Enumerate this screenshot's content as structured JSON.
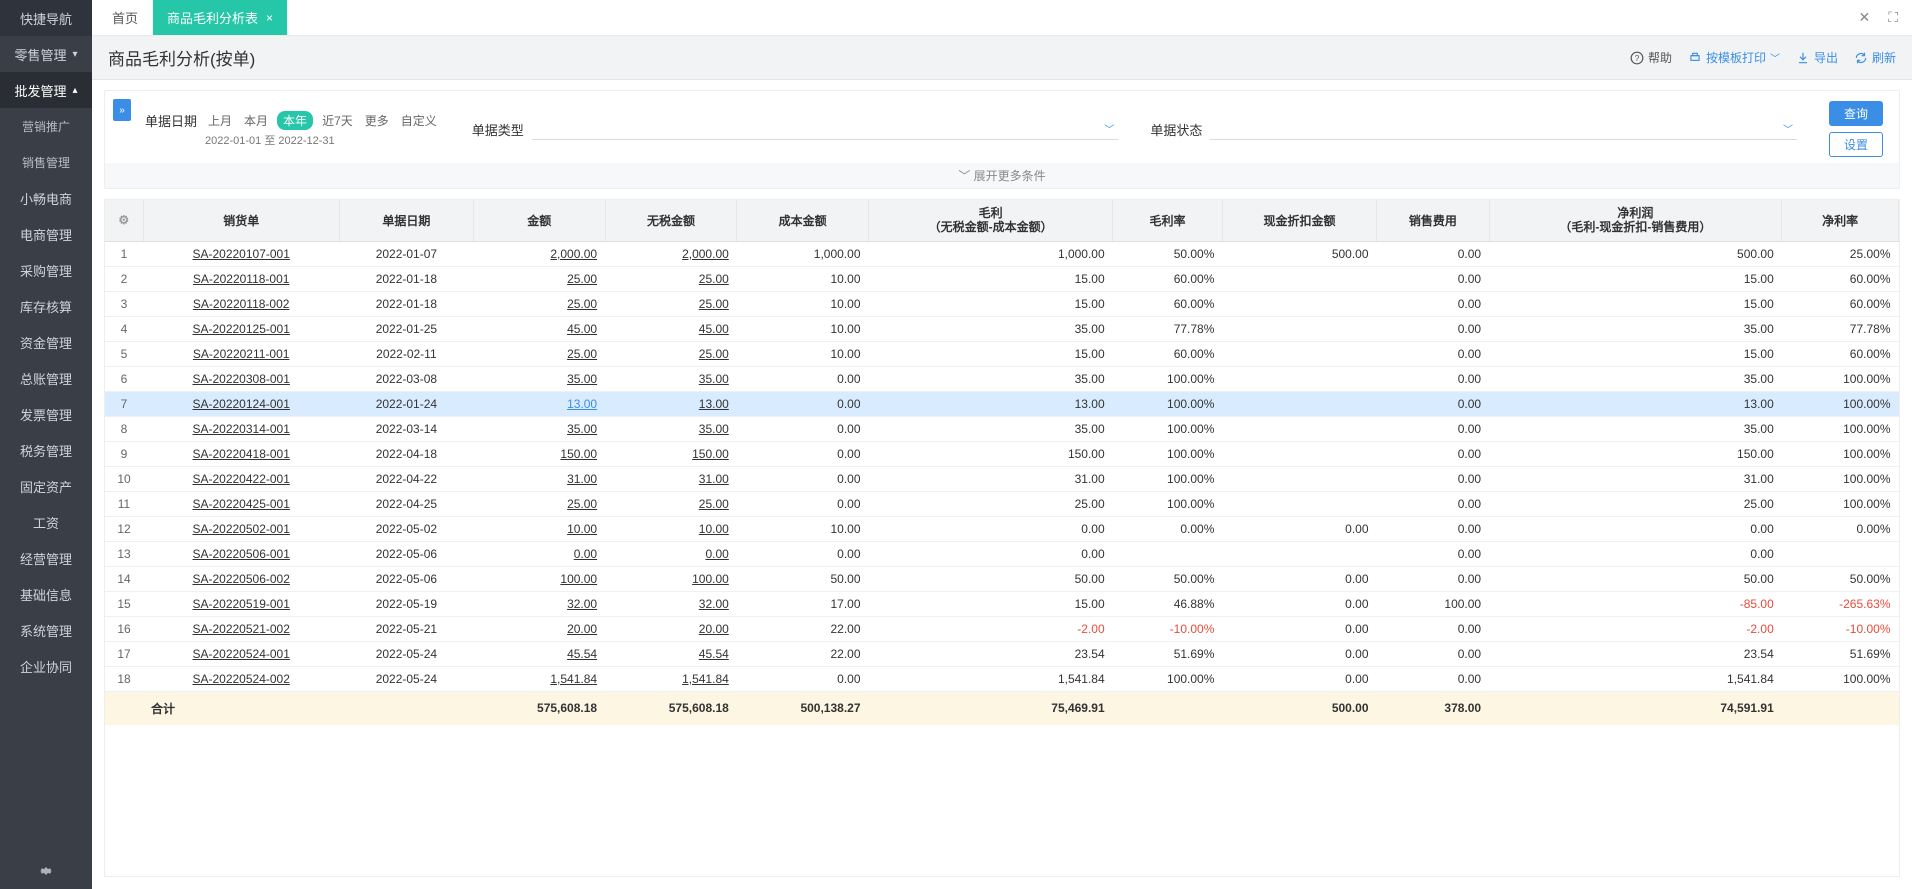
{
  "sidebar": {
    "items": [
      {
        "label": "快捷导航",
        "caret": false
      },
      {
        "label": "零售管理",
        "caret": true,
        "caret_dir": "down"
      },
      {
        "label": "批发管理",
        "caret": true,
        "caret_dir": "up",
        "active": true
      },
      {
        "label": "营销推广",
        "sub": true
      },
      {
        "label": "销售管理",
        "sub": true
      },
      {
        "label": "小畅电商"
      },
      {
        "label": "电商管理"
      },
      {
        "label": "采购管理"
      },
      {
        "label": "库存核算"
      },
      {
        "label": "资金管理"
      },
      {
        "label": "总账管理"
      },
      {
        "label": "发票管理"
      },
      {
        "label": "税务管理"
      },
      {
        "label": "固定资产"
      },
      {
        "label": "工资"
      },
      {
        "label": "经营管理"
      },
      {
        "label": "基础信息"
      },
      {
        "label": "系统管理"
      },
      {
        "label": "企业协同"
      }
    ]
  },
  "tabs": {
    "items": [
      {
        "label": "首页",
        "closable": false
      },
      {
        "label": "商品毛利分析表",
        "closable": true,
        "active": true
      }
    ]
  },
  "page": {
    "title": "商品毛利分析(按单)",
    "toolbar": {
      "help": "帮助",
      "print": "按模板打印",
      "export": "导出",
      "refresh": "刷新"
    }
  },
  "filters": {
    "date_label": "单据日期",
    "date_tabs": [
      "上月",
      "本月",
      "本年",
      "近7天",
      "更多",
      "自定义"
    ],
    "date_active": "本年",
    "date_range": "2022-01-01 至 2022-12-31",
    "type_label": "单据类型",
    "status_label": "单据状态",
    "query_btn": "查询",
    "setting_btn": "设置",
    "expand": "展开更多条件"
  },
  "table": {
    "columns": [
      "销货单",
      "单据日期",
      "金额",
      "无税金额",
      "成本金额",
      "毛利\n（无税金额-成本金额）",
      "毛利率",
      "现金折扣金额",
      "销售费用",
      "净利润\n（毛利-现金折扣-销售费用）",
      "净利率"
    ],
    "rows": [
      {
        "idx": 1,
        "order": "SA-20220107-001",
        "date": "2022-01-07",
        "amt": "2,000.00",
        "amt_nt": "2,000.00",
        "cost": "1,000.00",
        "gp": "1,000.00",
        "gpr": "50.00%",
        "disc": "500.00",
        "fee": "0.00",
        "np": "500.00",
        "npr": "25.00%"
      },
      {
        "idx": 2,
        "order": "SA-20220118-001",
        "date": "2022-01-18",
        "amt": "25.00",
        "amt_nt": "25.00",
        "cost": "10.00",
        "gp": "15.00",
        "gpr": "60.00%",
        "disc": "",
        "fee": "0.00",
        "np": "15.00",
        "npr": "60.00%"
      },
      {
        "idx": 3,
        "order": "SA-20220118-002",
        "date": "2022-01-18",
        "amt": "25.00",
        "amt_nt": "25.00",
        "cost": "10.00",
        "gp": "15.00",
        "gpr": "60.00%",
        "disc": "",
        "fee": "0.00",
        "np": "15.00",
        "npr": "60.00%"
      },
      {
        "idx": 4,
        "order": "SA-20220125-001",
        "date": "2022-01-25",
        "amt": "45.00",
        "amt_nt": "45.00",
        "cost": "10.00",
        "gp": "35.00",
        "gpr": "77.78%",
        "disc": "",
        "fee": "0.00",
        "np": "35.00",
        "npr": "77.78%"
      },
      {
        "idx": 5,
        "order": "SA-20220211-001",
        "date": "2022-02-11",
        "amt": "25.00",
        "amt_nt": "25.00",
        "cost": "10.00",
        "gp": "15.00",
        "gpr": "60.00%",
        "disc": "",
        "fee": "0.00",
        "np": "15.00",
        "npr": "60.00%"
      },
      {
        "idx": 6,
        "order": "SA-20220308-001",
        "date": "2022-03-08",
        "amt": "35.00",
        "amt_nt": "35.00",
        "cost": "0.00",
        "gp": "35.00",
        "gpr": "100.00%",
        "disc": "",
        "fee": "0.00",
        "np": "35.00",
        "npr": "100.00%"
      },
      {
        "idx": 7,
        "order": "SA-20220124-001",
        "date": "2022-01-24",
        "amt": "13.00",
        "amt_nt": "13.00",
        "cost": "0.00",
        "gp": "13.00",
        "gpr": "100.00%",
        "disc": "",
        "fee": "0.00",
        "np": "13.00",
        "npr": "100.00%",
        "highlight": true,
        "blue_amt": true
      },
      {
        "idx": 8,
        "order": "SA-20220314-001",
        "date": "2022-03-14",
        "amt": "35.00",
        "amt_nt": "35.00",
        "cost": "0.00",
        "gp": "35.00",
        "gpr": "100.00%",
        "disc": "",
        "fee": "0.00",
        "np": "35.00",
        "npr": "100.00%"
      },
      {
        "idx": 9,
        "order": "SA-20220418-001",
        "date": "2022-04-18",
        "amt": "150.00",
        "amt_nt": "150.00",
        "cost": "0.00",
        "gp": "150.00",
        "gpr": "100.00%",
        "disc": "",
        "fee": "0.00",
        "np": "150.00",
        "npr": "100.00%"
      },
      {
        "idx": 10,
        "order": "SA-20220422-001",
        "date": "2022-04-22",
        "amt": "31.00",
        "amt_nt": "31.00",
        "cost": "0.00",
        "gp": "31.00",
        "gpr": "100.00%",
        "disc": "",
        "fee": "0.00",
        "np": "31.00",
        "npr": "100.00%"
      },
      {
        "idx": 11,
        "order": "SA-20220425-001",
        "date": "2022-04-25",
        "amt": "25.00",
        "amt_nt": "25.00",
        "cost": "0.00",
        "gp": "25.00",
        "gpr": "100.00%",
        "disc": "",
        "fee": "0.00",
        "np": "25.00",
        "npr": "100.00%"
      },
      {
        "idx": 12,
        "order": "SA-20220502-001",
        "date": "2022-05-02",
        "amt": "10.00",
        "amt_nt": "10.00",
        "cost": "10.00",
        "gp": "0.00",
        "gpr": "0.00%",
        "disc": "0.00",
        "fee": "0.00",
        "np": "0.00",
        "npr": "0.00%"
      },
      {
        "idx": 13,
        "order": "SA-20220506-001",
        "date": "2022-05-06",
        "amt": "0.00",
        "amt_nt": "0.00",
        "cost": "0.00",
        "gp": "0.00",
        "gpr": "",
        "disc": "",
        "fee": "0.00",
        "np": "0.00",
        "npr": ""
      },
      {
        "idx": 14,
        "order": "SA-20220506-002",
        "date": "2022-05-06",
        "amt": "100.00",
        "amt_nt": "100.00",
        "cost": "50.00",
        "gp": "50.00",
        "gpr": "50.00%",
        "disc": "0.00",
        "fee": "0.00",
        "np": "50.00",
        "npr": "50.00%"
      },
      {
        "idx": 15,
        "order": "SA-20220519-001",
        "date": "2022-05-19",
        "amt": "32.00",
        "amt_nt": "32.00",
        "cost": "17.00",
        "gp": "15.00",
        "gpr": "46.88%",
        "disc": "0.00",
        "fee": "100.00",
        "np": "-85.00",
        "npr": "-265.63%",
        "np_neg": true,
        "npr_neg": true
      },
      {
        "idx": 16,
        "order": "SA-20220521-002",
        "date": "2022-05-21",
        "amt": "20.00",
        "amt_nt": "20.00",
        "cost": "22.00",
        "gp": "-2.00",
        "gpr": "-10.00%",
        "disc": "0.00",
        "fee": "0.00",
        "np": "-2.00",
        "npr": "-10.00%",
        "gp_neg": true,
        "gpr_neg": true,
        "np_neg": true,
        "npr_neg": true
      },
      {
        "idx": 17,
        "order": "SA-20220524-001",
        "date": "2022-05-24",
        "amt": "45.54",
        "amt_nt": "45.54",
        "cost": "22.00",
        "gp": "23.54",
        "gpr": "51.69%",
        "disc": "0.00",
        "fee": "0.00",
        "np": "23.54",
        "npr": "51.69%"
      },
      {
        "idx": 18,
        "order": "SA-20220524-002",
        "date": "2022-05-24",
        "amt": "1,541.84",
        "amt_nt": "1,541.84",
        "cost": "0.00",
        "gp": "1,541.84",
        "gpr": "100.00%",
        "disc": "0.00",
        "fee": "0.00",
        "np": "1,541.84",
        "npr": "100.00%"
      }
    ],
    "total": {
      "label": "合计",
      "amt": "575,608.18",
      "amt_nt": "575,608.18",
      "cost": "500,138.27",
      "gp": "75,469.91",
      "disc": "500.00",
      "fee": "378.00",
      "np": "74,591.91"
    }
  },
  "colors": {
    "sidebar_bg": "#3a3e47",
    "accent": "#26c6a8",
    "primary": "#3a8ee6",
    "negative": "#e74c3c",
    "total_bg": "#fdf6e3",
    "highlight_row": "#d9ecff"
  }
}
